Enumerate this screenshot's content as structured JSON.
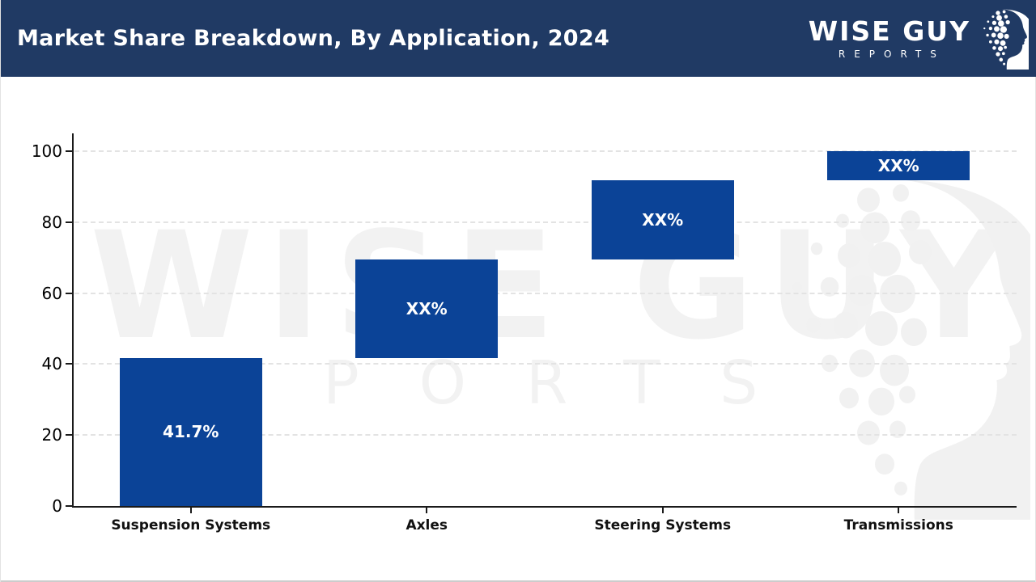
{
  "header": {
    "title": "Market Share Breakdown, By Application, 2024",
    "bg_color": "#203A64",
    "logo": {
      "line1": "WISE GUY",
      "line2": "REPORTS"
    }
  },
  "watermark": {
    "line1": "WISE GUY",
    "line2": "REPORTS"
  },
  "chart_data": {
    "type": "bar",
    "subtype": "waterfall",
    "title": "Market Share Breakdown, By Application, 2024",
    "categories": [
      "Suspension Systems",
      "Axles",
      "Steering Systems",
      "Transmissions"
    ],
    "segments": [
      {
        "category": "Suspension Systems",
        "base": 0,
        "top": 41.7,
        "label": "41.7%"
      },
      {
        "category": "Axles",
        "base": 41.7,
        "top": 69.4,
        "label": "XX%"
      },
      {
        "category": "Steering Systems",
        "base": 69.4,
        "top": 91.7,
        "label": "XX%"
      },
      {
        "category": "Transmissions",
        "base": 91.7,
        "top": 100,
        "label": "XX%"
      }
    ],
    "xlabel": "",
    "ylabel": "",
    "ylim": [
      0,
      100
    ],
    "yticks": [
      0,
      20,
      40,
      60,
      80,
      100
    ],
    "grid": "horizontal-dashed",
    "legend": "none",
    "bar_color": "#0B4397",
    "value_label_color": "#FFFFFF",
    "axis_color": "#1A1A1A",
    "gridline_color": "#E3E3E3"
  }
}
